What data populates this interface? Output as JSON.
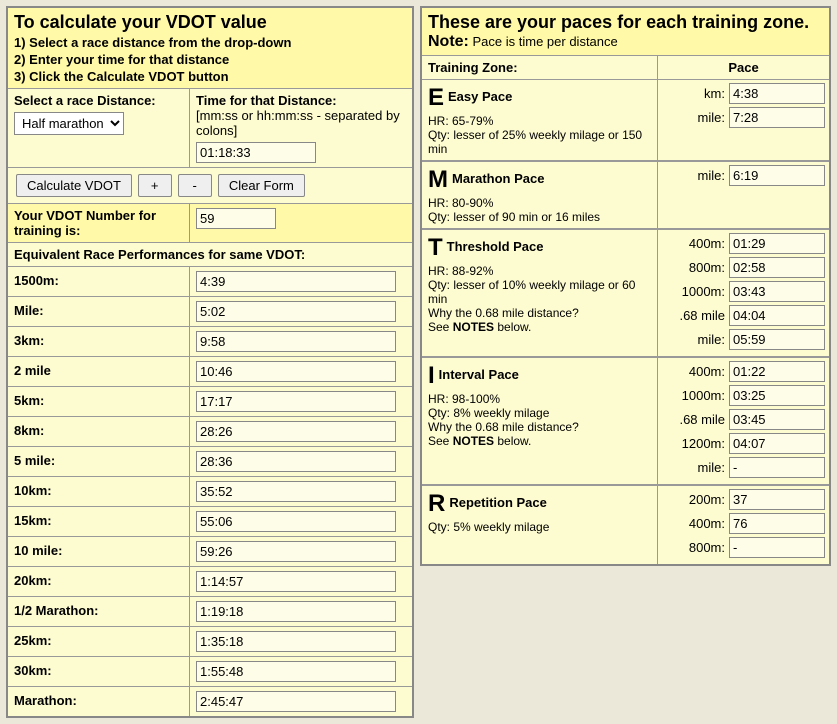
{
  "left": {
    "title": "To calculate your VDOT value",
    "steps": [
      "1) Select a race distance from the drop-down",
      "2) Enter your time for that distance",
      "3) Click the Calculate VDOT button"
    ],
    "distLabel": "Select a race Distance:",
    "distSelected": "Half marathon",
    "timeLabel": "Time for that Distance:",
    "timeHint": "[mm:ss or hh:mm:ss - separated by colons]",
    "timeVal": "01:18:33",
    "btnCalc": "Calculate VDOT",
    "btnPlus": "+",
    "btnMinus": "-",
    "btnClear": "Clear Form",
    "vdotLabel": "Your VDOT Number for training is:",
    "vdotVal": "59",
    "equivHdr": "Equivalent Race Performances for same VDOT:",
    "equiv": [
      {
        "d": "1500m:",
        "t": "4:39"
      },
      {
        "d": "Mile:",
        "t": "5:02"
      },
      {
        "d": "3km:",
        "t": "9:58"
      },
      {
        "d": "2 mile",
        "t": "10:46"
      },
      {
        "d": "5km:",
        "t": "17:17"
      },
      {
        "d": "8km:",
        "t": "28:26"
      },
      {
        "d": "5 mile:",
        "t": "28:36"
      },
      {
        "d": "10km:",
        "t": "35:52"
      },
      {
        "d": "15km:",
        "t": "55:06"
      },
      {
        "d": "10 mile:",
        "t": "59:26"
      },
      {
        "d": "20km:",
        "t": "1:14:57"
      },
      {
        "d": "1/2 Marathon:",
        "t": "1:19:18"
      },
      {
        "d": "25km:",
        "t": "1:35:18"
      },
      {
        "d": "30km:",
        "t": "1:55:48"
      },
      {
        "d": "Marathon:",
        "t": "2:45:47"
      }
    ]
  },
  "right": {
    "title": "These are your paces for each training zone.",
    "noteLabel": "Note:",
    "noteText": "Pace is time per distance",
    "colZone": "Training Zone:",
    "colPace": "Pace",
    "zones": [
      {
        "letter": "E",
        "name": "Easy Pace",
        "lines": [
          "HR: 65-79%",
          "Qty: lesser of 25% weekly milage or 150 min"
        ],
        "paces": [
          {
            "lab": "km:",
            "val": "4:38"
          },
          {
            "lab": "mile:",
            "val": "7:28"
          }
        ]
      },
      {
        "letter": "M",
        "name": "Marathon Pace",
        "lines": [
          "HR: 80-90%",
          "Qty: lesser of 90 min or 16 miles"
        ],
        "paces": [
          {
            "lab": "mile:",
            "val": "6:19"
          }
        ]
      },
      {
        "letter": "T",
        "name": "Threshold Pace",
        "lines": [
          "HR: 88-92%",
          "Qty: lesser of 10% weekly milage or 60 min",
          "Why the 0.68 mile distance?",
          "See NOTES below."
        ],
        "paces": [
          {
            "lab": "400m:",
            "val": "01:29"
          },
          {
            "lab": "800m:",
            "val": "02:58"
          },
          {
            "lab": "1000m:",
            "val": "03:43"
          },
          {
            "lab": ".68 mile",
            "val": "04:04"
          },
          {
            "lab": "mile:",
            "val": "05:59"
          }
        ]
      },
      {
        "letter": "I",
        "name": "Interval Pace",
        "lines": [
          "HR: 98-100%",
          "Qty: 8% weekly milage",
          "Why the 0.68 mile distance?",
          "See NOTES below."
        ],
        "paces": [
          {
            "lab": "400m:",
            "val": "01:22"
          },
          {
            "lab": "1000m:",
            "val": "03:25"
          },
          {
            "lab": ".68 mile",
            "val": "03:45"
          },
          {
            "lab": "1200m:",
            "val": "04:07"
          },
          {
            "lab": "mile:",
            "val": "-"
          }
        ]
      },
      {
        "letter": "R",
        "name": "Repetition Pace",
        "lines": [
          "Qty: 5% weekly milage"
        ],
        "paces": [
          {
            "lab": "200m:",
            "val": "37"
          },
          {
            "lab": "400m:",
            "val": "76"
          },
          {
            "lab": "800m:",
            "val": "-"
          }
        ]
      }
    ]
  }
}
